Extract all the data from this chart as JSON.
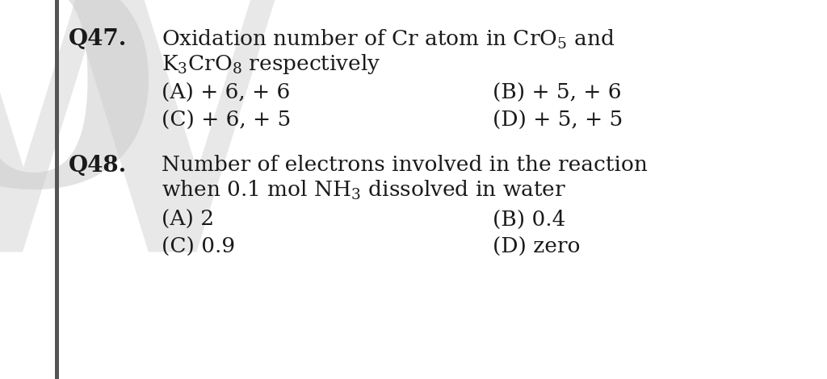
{
  "background_color": "#ffffff",
  "left_bar_color": "#555555",
  "text_color": "#1a1a1a",
  "q47_label": "Q47.",
  "q47_line1": "Oxidation number of Cr atom in $\\mathregular{CrO_5}$ and",
  "q47_line2": "$\\mathregular{K_3CrO_8}$ respectively",
  "q47_A": "(A) + 6, + 6",
  "q47_B": "(B) + 5, + 6",
  "q47_C": "(C) + 6, + 5",
  "q47_D": "(D) + 5, + 5",
  "q48_label": "Q48.",
  "q48_line1": "Number of electrons involved in the reaction",
  "q48_line2": "when 0.1 mol $\\mathregular{NH_3}$ dissolved in water",
  "q48_A": "(A) 2",
  "q48_B": "(B) 0.4",
  "q48_C": "(C) 0.9",
  "q48_D": "(D) zero",
  "font_size_main": 19,
  "font_size_options": 19,
  "font_size_q_label": 20
}
